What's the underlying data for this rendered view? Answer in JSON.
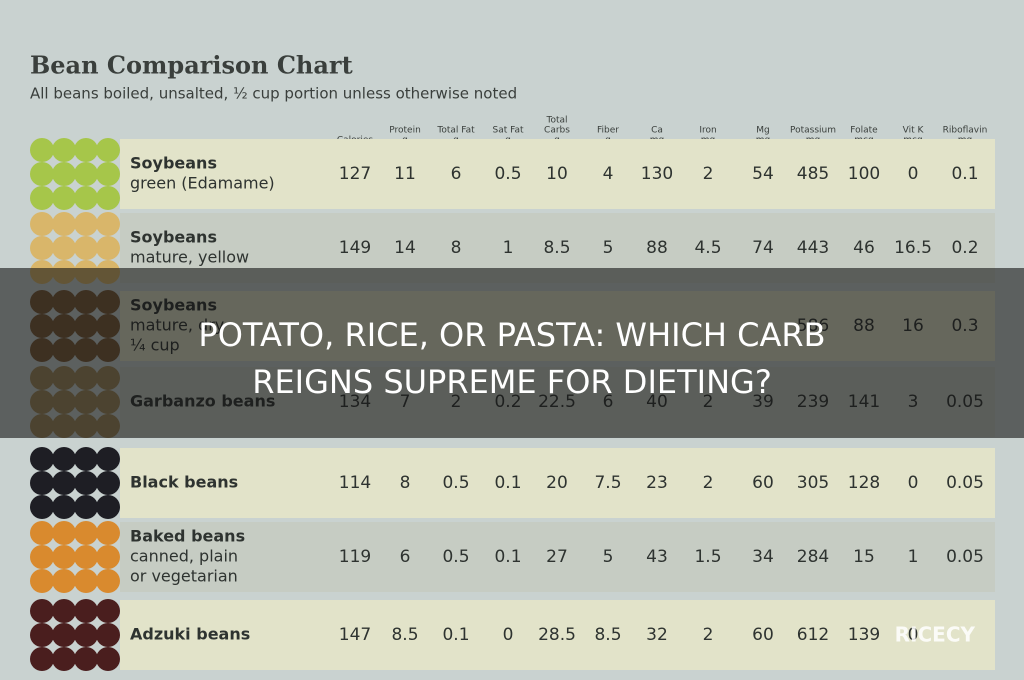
{
  "header": {
    "title": "Bean Comparison Chart",
    "subtitle": "All beans boiled, unsalted, ½ cup portion unless otherwise noted"
  },
  "table": {
    "columns": [
      [
        "Calories"
      ],
      [
        "Protein",
        "g"
      ],
      [
        "Total Fat",
        "g"
      ],
      [
        "Sat Fat",
        "g"
      ],
      [
        "Total",
        "Carbs",
        "g"
      ],
      [
        "Fiber",
        "g"
      ],
      [
        "Ca",
        "mg"
      ],
      [
        "Iron",
        "mg"
      ],
      [
        "Mg",
        "mg"
      ],
      [
        "Potassium",
        "mg"
      ],
      [
        "Folate",
        "mcg"
      ],
      [
        "Vit K",
        "mcg"
      ],
      [
        "Riboflavin",
        "mg"
      ]
    ],
    "rows": [
      {
        "name": "Soybeans",
        "detail": [
          "green (Edamame)"
        ],
        "values": [
          127,
          11,
          6,
          0.5,
          10,
          4,
          130,
          2,
          54,
          485,
          100,
          0,
          0.1
        ]
      },
      {
        "name": "Soybeans",
        "detail": [
          "mature, yellow"
        ],
        "values": [
          149,
          14,
          8,
          1,
          8.5,
          5,
          88,
          4.5,
          74,
          443,
          46,
          16.5,
          0.2
        ]
      },
      {
        "name": "Soybeans",
        "detail": [
          "mature, dry",
          "¼ cup"
        ],
        "values": [
          null,
          null,
          null,
          null,
          null,
          null,
          null,
          null,
          null,
          586,
          88,
          16,
          0.3
        ]
      },
      {
        "name": "Garbanzo beans",
        "detail": [],
        "values": [
          134,
          7,
          2,
          0.2,
          22.5,
          6,
          40,
          2,
          39,
          239,
          141,
          3,
          0.05
        ]
      },
      {
        "name": "Black beans",
        "detail": [],
        "values": [
          114,
          8,
          0.5,
          0.1,
          20,
          7.5,
          23,
          2,
          60,
          305,
          128,
          0,
          0.05
        ]
      },
      {
        "name": "Baked beans",
        "detail": [
          "canned, plain",
          "or vegetarian"
        ],
        "values": [
          119,
          6,
          0.5,
          0.1,
          27,
          5,
          43,
          1.5,
          34,
          284,
          15,
          1,
          0.05
        ]
      },
      {
        "name": "Adzuki beans",
        "detail": [],
        "values": [
          147,
          8.5,
          0.1,
          0,
          28.5,
          8.5,
          32,
          2,
          60,
          612,
          139,
          0,
          null
        ]
      }
    ]
  },
  "overlay": {
    "lines": [
      "POTATO, RICE, OR PASTA: WHICH CARB",
      "REIGNS SUPREME FOR DIETING?"
    ]
  },
  "watermark": "RICECY"
}
